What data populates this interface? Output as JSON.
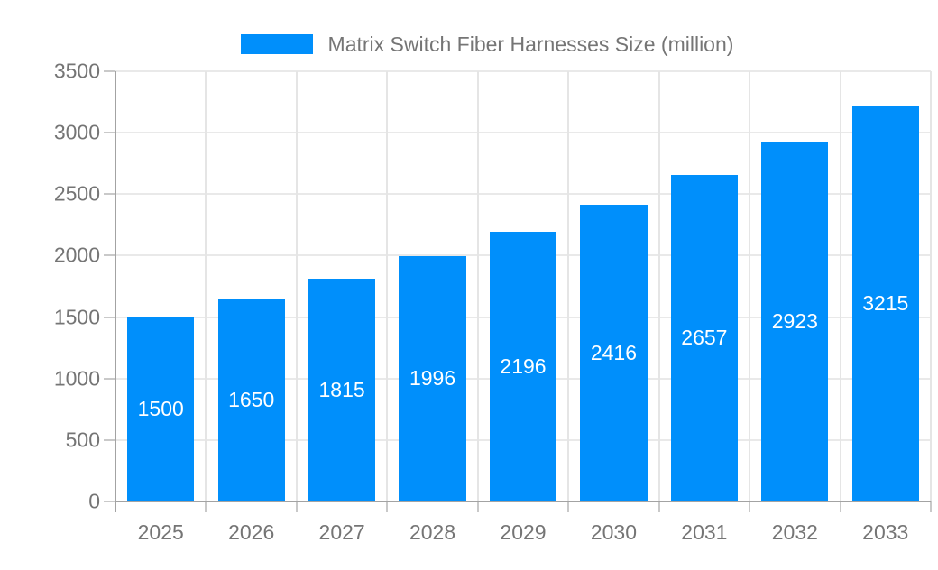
{
  "chart_data": {
    "type": "bar",
    "title": "Matrix Switch Fiber Harnesses Size (million)",
    "categories": [
      "2025",
      "2026",
      "2027",
      "2028",
      "2029",
      "2030",
      "2031",
      "2032",
      "2033"
    ],
    "values": [
      1500,
      1650,
      1815,
      1996,
      2196,
      2416,
      2657,
      2923,
      3215
    ],
    "series_name": "Matrix Switch Fiber Harnesses Size (million)",
    "xlabel": "",
    "ylabel": "",
    "ylim": [
      0,
      3500
    ],
    "yticks": [
      0,
      500,
      1000,
      1500,
      2000,
      2500,
      3000,
      3500
    ],
    "grid": "on",
    "legend_position": "top",
    "bar_color": "#008FFB",
    "bar_label_color": "#ffffff",
    "axis_text_color": "#757575",
    "gridline_color": "#e9e9e9",
    "axis_line_color": "#a3a3a3"
  }
}
